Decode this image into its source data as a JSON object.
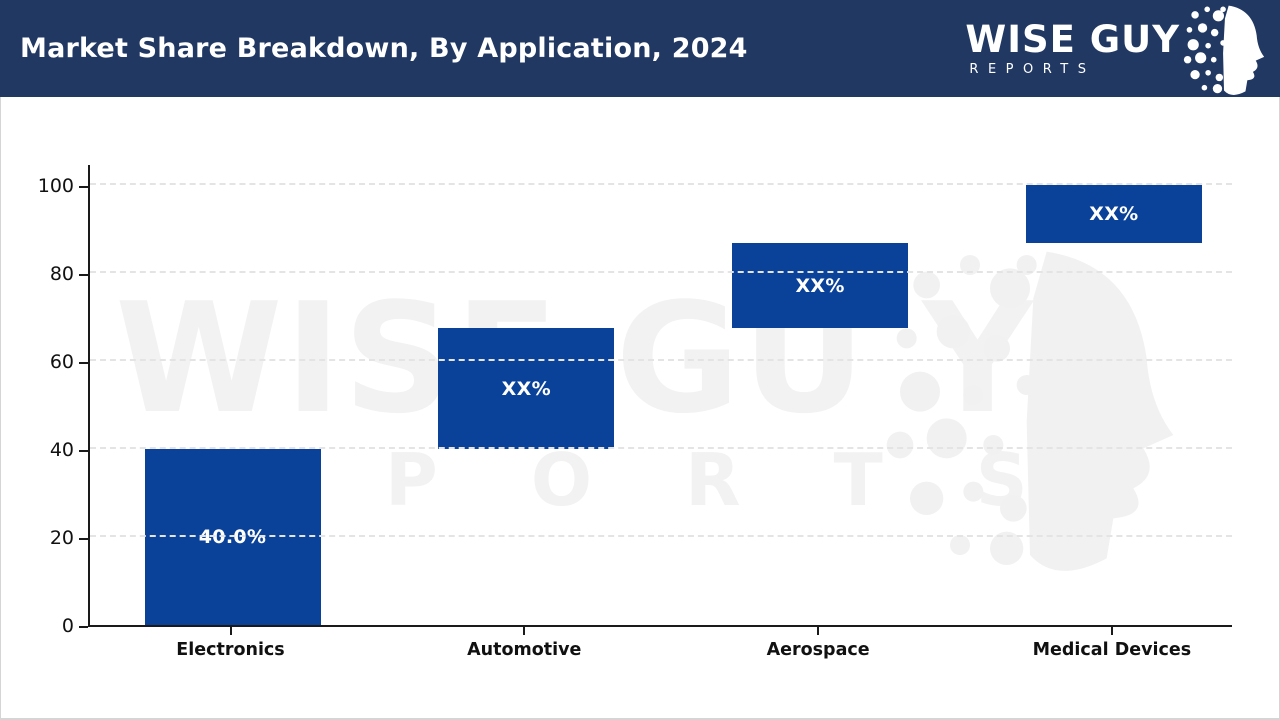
{
  "header": {
    "title": "Market Share Breakdown, By Application, 2024",
    "bg_color": "#213863",
    "logo": {
      "line1": "WISE GUY",
      "line2": "REPORTS"
    }
  },
  "watermark": {
    "line1": "WISE GU Y",
    "line2": "P O R T S"
  },
  "chart_data": {
    "type": "bar",
    "subtype": "waterfall",
    "title": "Market Share Breakdown, By Application, 2024",
    "categories": [
      "Electronics",
      "Automotive",
      "Aerospace",
      "Medical Devices"
    ],
    "segments": [
      {
        "category": "Electronics",
        "start": 0,
        "end": 40,
        "label": "40.0%"
      },
      {
        "category": "Automotive",
        "start": 40,
        "end": 67.4,
        "label": "XX%"
      },
      {
        "category": "Aerospace",
        "start": 67.4,
        "end": 86.9,
        "label": "XX%"
      },
      {
        "category": "Medical Devices",
        "start": 86.9,
        "end": 100,
        "label": "XX%"
      }
    ],
    "yticks": [
      0,
      20,
      40,
      60,
      80,
      100
    ],
    "ylim": [
      0,
      105
    ],
    "xlabel": "",
    "ylabel": "",
    "grid": "dashed-horizontal",
    "legend": "none",
    "bar_color": "#0b4299",
    "bar_label_color": "#ffffff",
    "axis_color": "#1a1a1a",
    "grid_color": "#e4e4e4"
  }
}
